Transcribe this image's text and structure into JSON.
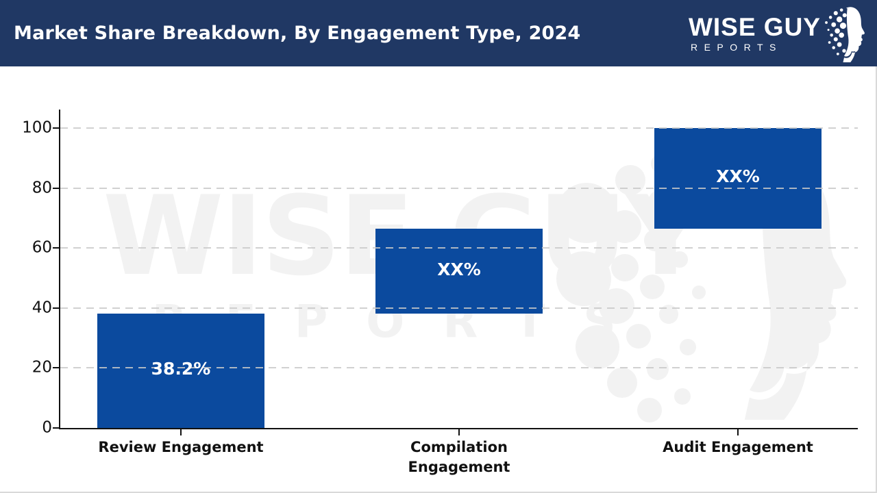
{
  "header": {
    "title": "Market Share Breakdown, By Engagement Type, 2024",
    "logo": {
      "line1": "WISE GUY",
      "line2": "REPORTS"
    }
  },
  "watermark": {
    "line1": "WISE GUY",
    "line2": "REPORTS"
  },
  "colors": {
    "header_bg": "#203864",
    "bar": "#0b4a9e",
    "bar_label": "#ffffff",
    "watermark": "#f2f2f2",
    "grid": "#c9c9c9",
    "axis": "#111111",
    "hairline": "#d9d9d9"
  },
  "chart_data": {
    "type": "bar",
    "subtype": "waterfall-stacked-percentage",
    "title": "Market Share Breakdown, By Engagement Type, 2024",
    "categories": [
      "Review Engagement",
      "Compilation\nEngagement",
      "Audit Engagement"
    ],
    "segments": [
      {
        "category": "Review Engagement",
        "start": 0,
        "end": 38.2,
        "label": "38.2%"
      },
      {
        "category": "Compilation Engagement",
        "start": 38.2,
        "end": 66.5,
        "label": "XX%"
      },
      {
        "category": "Audit Engagement",
        "start": 66.5,
        "end": 100,
        "label": "XX%"
      }
    ],
    "yticks": [
      0,
      20,
      40,
      60,
      80,
      100
    ],
    "ylim": [
      0,
      106
    ],
    "grid": "horizontal dashed, drawn above bars",
    "legend": "none",
    "bar_color": "#0b4a9e",
    "label_color": "#ffffff"
  }
}
